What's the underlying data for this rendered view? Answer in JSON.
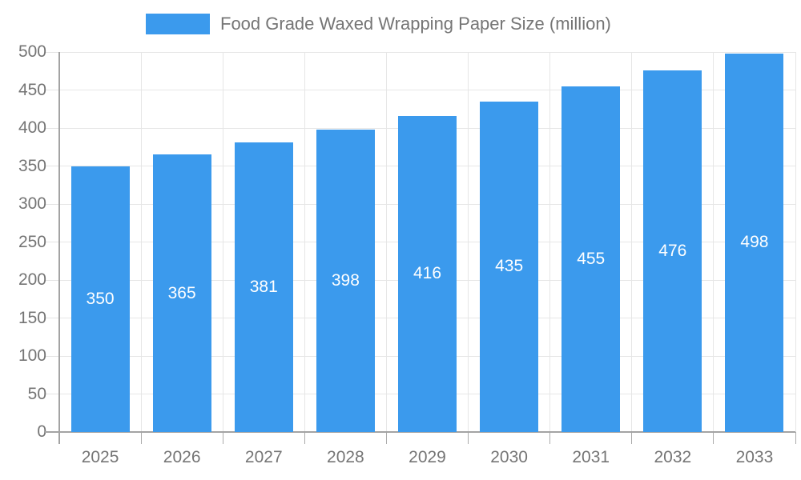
{
  "legend": {
    "label": "Food Grade Waxed Wrapping Paper Size (million)"
  },
  "chart_data": {
    "type": "bar",
    "title": "Food Grade Waxed Wrapping Paper Size (million)",
    "categories": [
      "2025",
      "2026",
      "2027",
      "2028",
      "2029",
      "2030",
      "2031",
      "2032",
      "2033"
    ],
    "values": [
      350,
      365,
      381,
      398,
      416,
      435,
      455,
      476,
      498
    ],
    "xlabel": "",
    "ylabel": "",
    "ylim": [
      0,
      500
    ],
    "y_ticks": [
      0,
      50,
      100,
      150,
      200,
      250,
      300,
      350,
      400,
      450,
      500
    ],
    "grid": true,
    "legend_position": "top",
    "value_label_position": "inside-middle",
    "colors": {
      "bar": "#3b9aed",
      "axis": "#a3a3a3",
      "grid": "#e6e6e6",
      "tick_label": "#757575",
      "value_label": "#ffffff",
      "background": "#ffffff"
    }
  }
}
